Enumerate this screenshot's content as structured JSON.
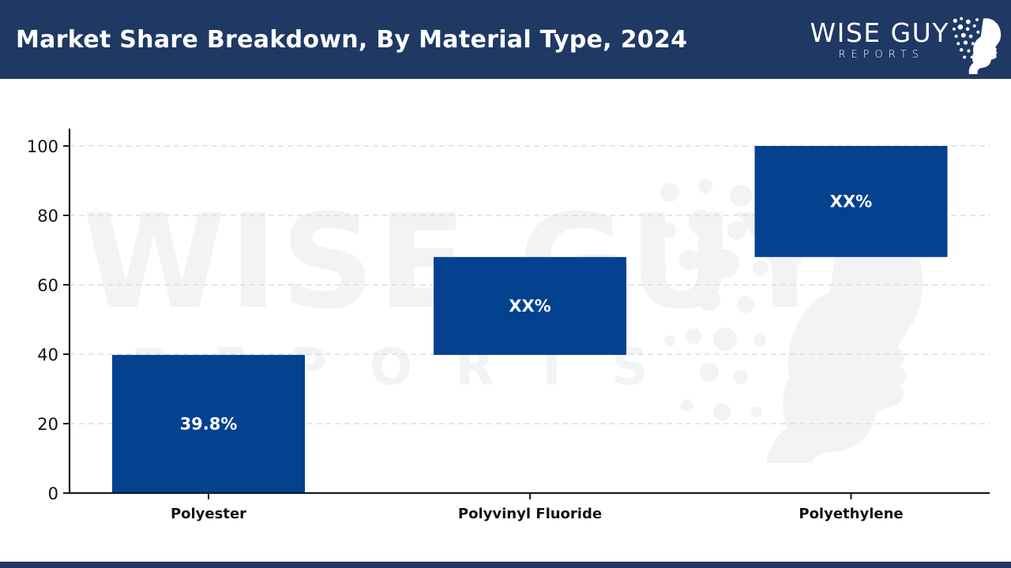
{
  "header": {
    "title": "Market Share Breakdown, By Material Type, 2024",
    "logo": {
      "line1": "WISE GUY",
      "line2": "REPORTS"
    }
  },
  "watermark": {
    "line1": "WISE GUY",
    "line2": "REPORTS"
  },
  "chart_data": {
    "type": "bar",
    "variant": "floating-segment-waterfall",
    "title": "Market Share Breakdown, By Material Type, 2024",
    "categories": [
      "Polyester",
      "Polyvinyl Fluoride",
      "Polyethylene"
    ],
    "series": [
      {
        "name": "Polyester",
        "start": 0,
        "end": 39.8,
        "label": "39.8%"
      },
      {
        "name": "Polyvinyl Fluoride",
        "start": 39.8,
        "end": 68,
        "label": "XX%"
      },
      {
        "name": "Polyethylene",
        "start": 68,
        "end": 100,
        "label": "XX%"
      }
    ],
    "y_ticks": [
      0,
      20,
      40,
      60,
      80,
      100
    ],
    "ylim": [
      0,
      105
    ],
    "xlabel": "",
    "ylabel": "",
    "legend": null,
    "grid": "horizontal-dashed",
    "colors": {
      "bar": "#04418F",
      "header_bg": "#1F3864",
      "grid_line": "#DEDEDE",
      "axis": "#1A1A1A",
      "bar_label": "#FFFFFF",
      "watermark": "#F2F3F5"
    }
  }
}
